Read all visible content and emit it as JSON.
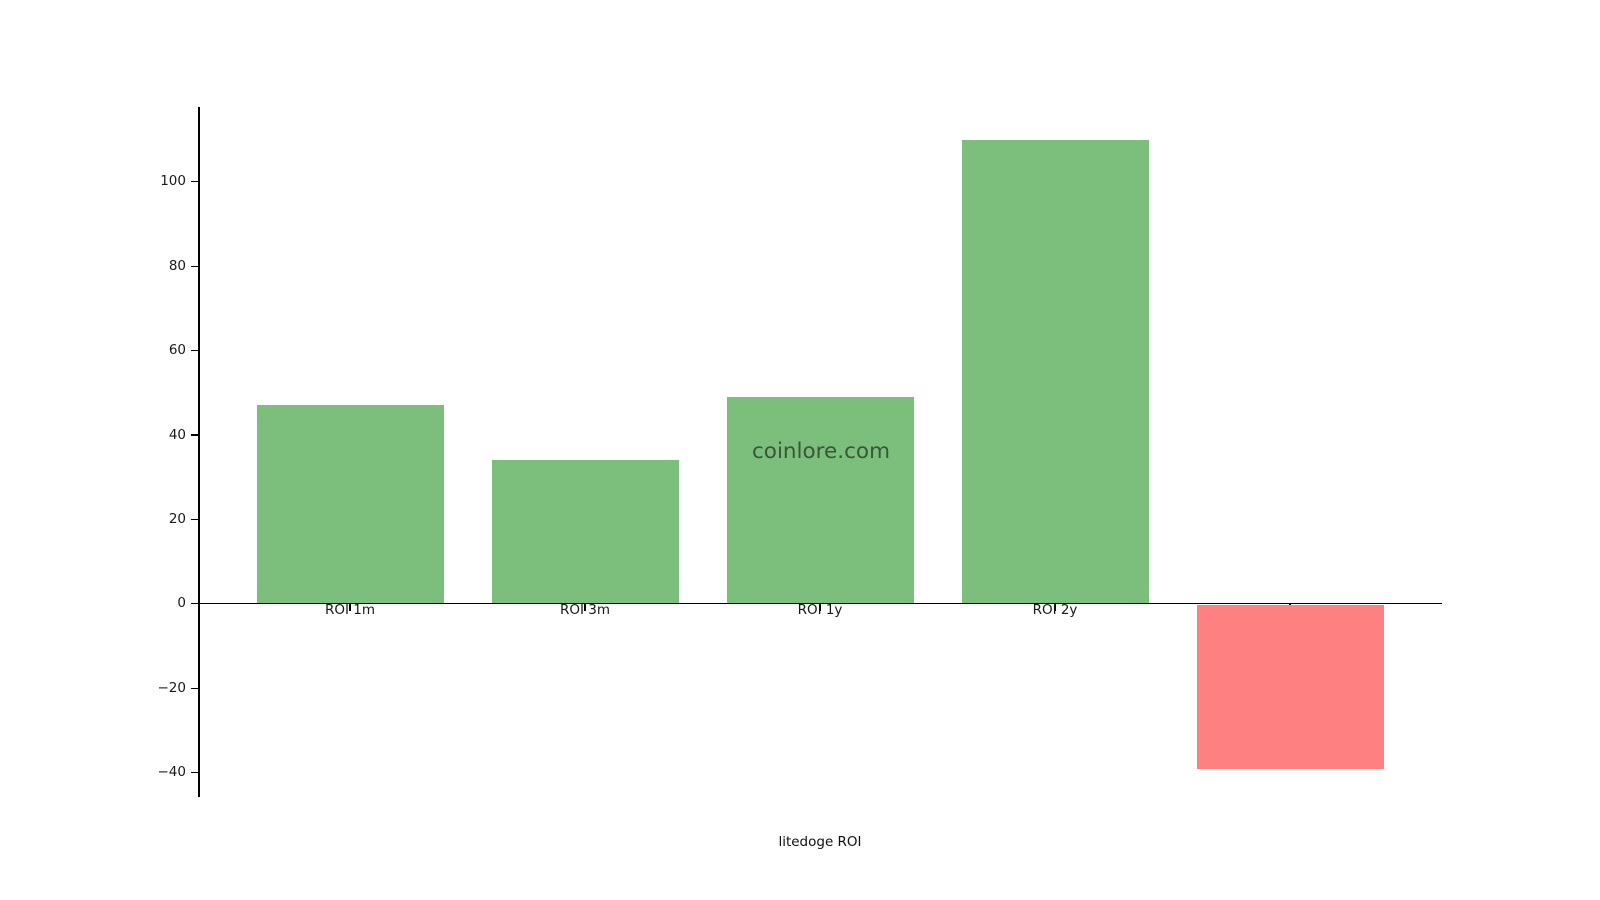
{
  "chart_data": {
    "type": "bar",
    "title": "",
    "xlabel": "litedoge ROI",
    "ylabel": "",
    "categories": [
      "ROI 1m",
      "ROI 3m",
      "ROI 1y",
      "ROI 2y",
      ""
    ],
    "values": [
      47,
      34,
      49,
      110,
      -39
    ],
    "bar_colors": [
      "#7CBE7C",
      "#7CBE7C",
      "#7CBE7C",
      "#7CBE7C",
      "#FF8080"
    ],
    "positive_color": "#7CBE7C",
    "negative_color": "#FF8080",
    "ytick_labels": [
      "100",
      "80",
      "60",
      "40",
      "20",
      "0",
      "−20",
      "−40"
    ],
    "ytick_values": [
      100,
      80,
      60,
      40,
      20,
      0,
      -20,
      -40
    ],
    "ylim": [
      -46,
      118
    ],
    "grid": false,
    "legend": "none",
    "note": "fifth bar's x tick label is hidden behind the red bar",
    "watermark": "coinlore.com",
    "axis_color": "#000000",
    "text_color": "#1a1a1a",
    "background": "#ffffff"
  }
}
